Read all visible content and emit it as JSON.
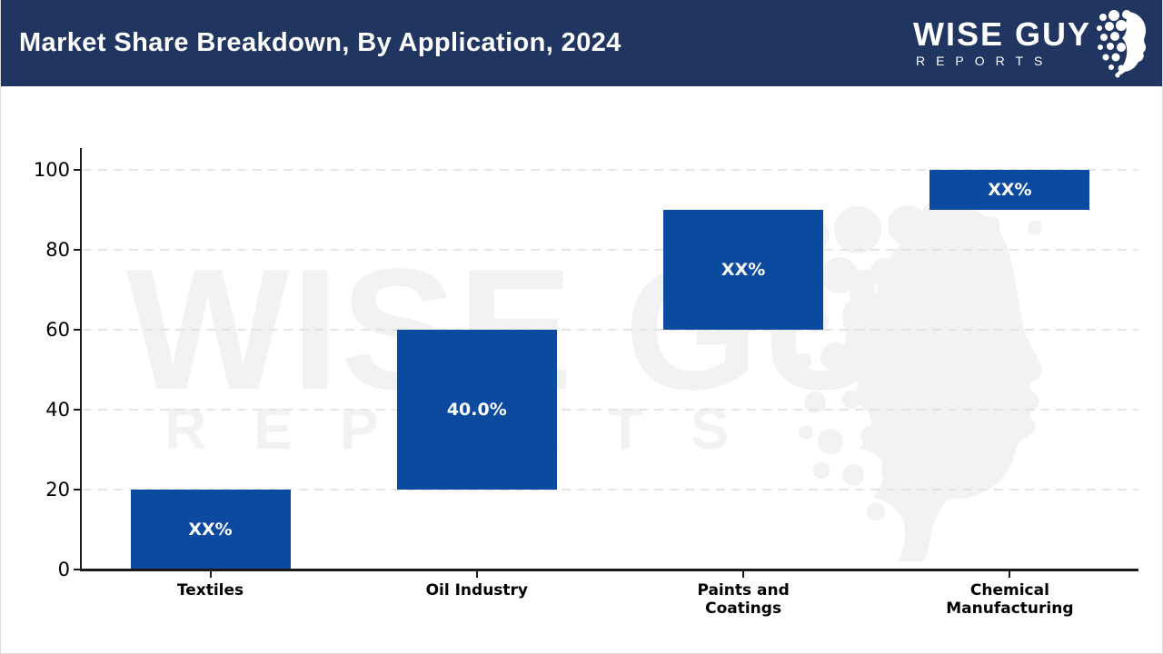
{
  "header": {
    "title": "Market Share Breakdown, By Application, 2024",
    "logo": {
      "line1": "WISE GUY",
      "line2": "REPORTS"
    },
    "bg_color": "#20355f"
  },
  "watermark": {
    "line1": "WISE GUY",
    "line2": "REPORTS"
  },
  "chart_data": {
    "type": "bar",
    "subtype": "waterfall",
    "title": "Market Share Breakdown, By Application, 2024",
    "categories": [
      "Textiles",
      "Oil Industry",
      "Paints and Coatings",
      "Chemical Manufacturing"
    ],
    "segments": [
      {
        "category": "Textiles",
        "start": 0,
        "end": 20,
        "value": 20,
        "label": "XX%"
      },
      {
        "category": "Oil Industry",
        "start": 20,
        "end": 60,
        "value": 40,
        "label": "40.0%"
      },
      {
        "category": "Paints and Coatings",
        "start": 60,
        "end": 90,
        "value": 30,
        "label": "XX%"
      },
      {
        "category": "Chemical Manufacturing",
        "start": 90,
        "end": 100,
        "value": 10,
        "label": "XX%"
      }
    ],
    "values": [
      20,
      40,
      30,
      10
    ],
    "bar_labels": [
      "XX%",
      "40.0%",
      "XX%",
      "XX%"
    ],
    "yticks": [
      0,
      20,
      40,
      60,
      80,
      100
    ],
    "ylim": [
      0,
      105.5
    ],
    "xlabel": "",
    "ylabel": "",
    "grid": "horizontal-dashed",
    "legend": "none",
    "bar_color": "#0b4a9f",
    "bar_label_color": "#ffffff"
  }
}
